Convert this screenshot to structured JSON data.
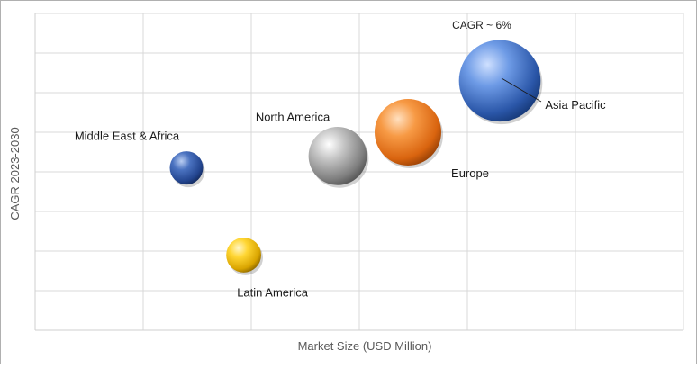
{
  "chart_data": {
    "type": "scatter",
    "style": "bubble",
    "xlabel": "Market Size (USD Million)",
    "ylabel": "CAGR 2023-2030",
    "annotation": "CAGR ~ 6%",
    "grid": true,
    "legend": "none",
    "xlim": [
      0,
      6
    ],
    "ylim": [
      0,
      8
    ],
    "series": [
      {
        "label": "Middle East & Africa",
        "x": 1.4,
        "y": 4.1,
        "size": 1.0,
        "color": "#2f5fb3"
      },
      {
        "label": "Latin America",
        "x": 1.93,
        "y": 1.9,
        "size": 1.05,
        "color": "#f2c200"
      },
      {
        "label": "North America",
        "x": 2.8,
        "y": 4.4,
        "size": 1.75,
        "color": "#9a9a9a"
      },
      {
        "label": "Europe",
        "x": 3.45,
        "y": 5.0,
        "size": 2.0,
        "color": "#ee7a20"
      },
      {
        "label": "Asia Pacific",
        "x": 4.3,
        "y": 6.3,
        "size": 2.45,
        "color": "#3a73d0"
      }
    ]
  }
}
